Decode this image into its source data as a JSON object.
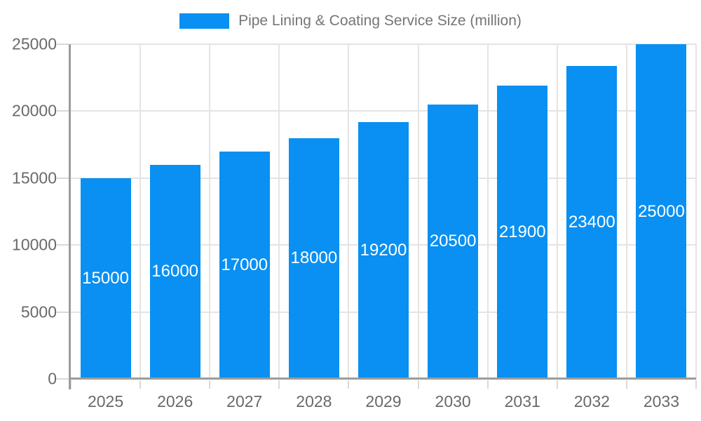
{
  "legend": {
    "label": "Pipe Lining & Coating Service Size (million)"
  },
  "colors": {
    "bar": "#0990f2",
    "legend_text": "#757575",
    "axis_line": "#9c9c9c",
    "gridline": "#e4e4e4",
    "tick": "#d9d9d9",
    "tick_label": "#696969",
    "bar_label": "#ffffff",
    "background": "#ffffff"
  },
  "chart_data": {
    "type": "bar",
    "title": "Pipe Lining & Coating Service Size (million)",
    "categories": [
      "2025",
      "2026",
      "2027",
      "2028",
      "2029",
      "2030",
      "2031",
      "2032",
      "2033"
    ],
    "values": [
      15000,
      16000,
      17000,
      18000,
      19200,
      20500,
      21900,
      23400,
      25000
    ],
    "xlabel": "",
    "ylabel": "",
    "ylim": [
      0,
      25000
    ],
    "yticks": [
      0,
      5000,
      10000,
      15000,
      20000,
      25000
    ],
    "bar_labels_inside": true,
    "grid": true,
    "legend_position": "top"
  }
}
